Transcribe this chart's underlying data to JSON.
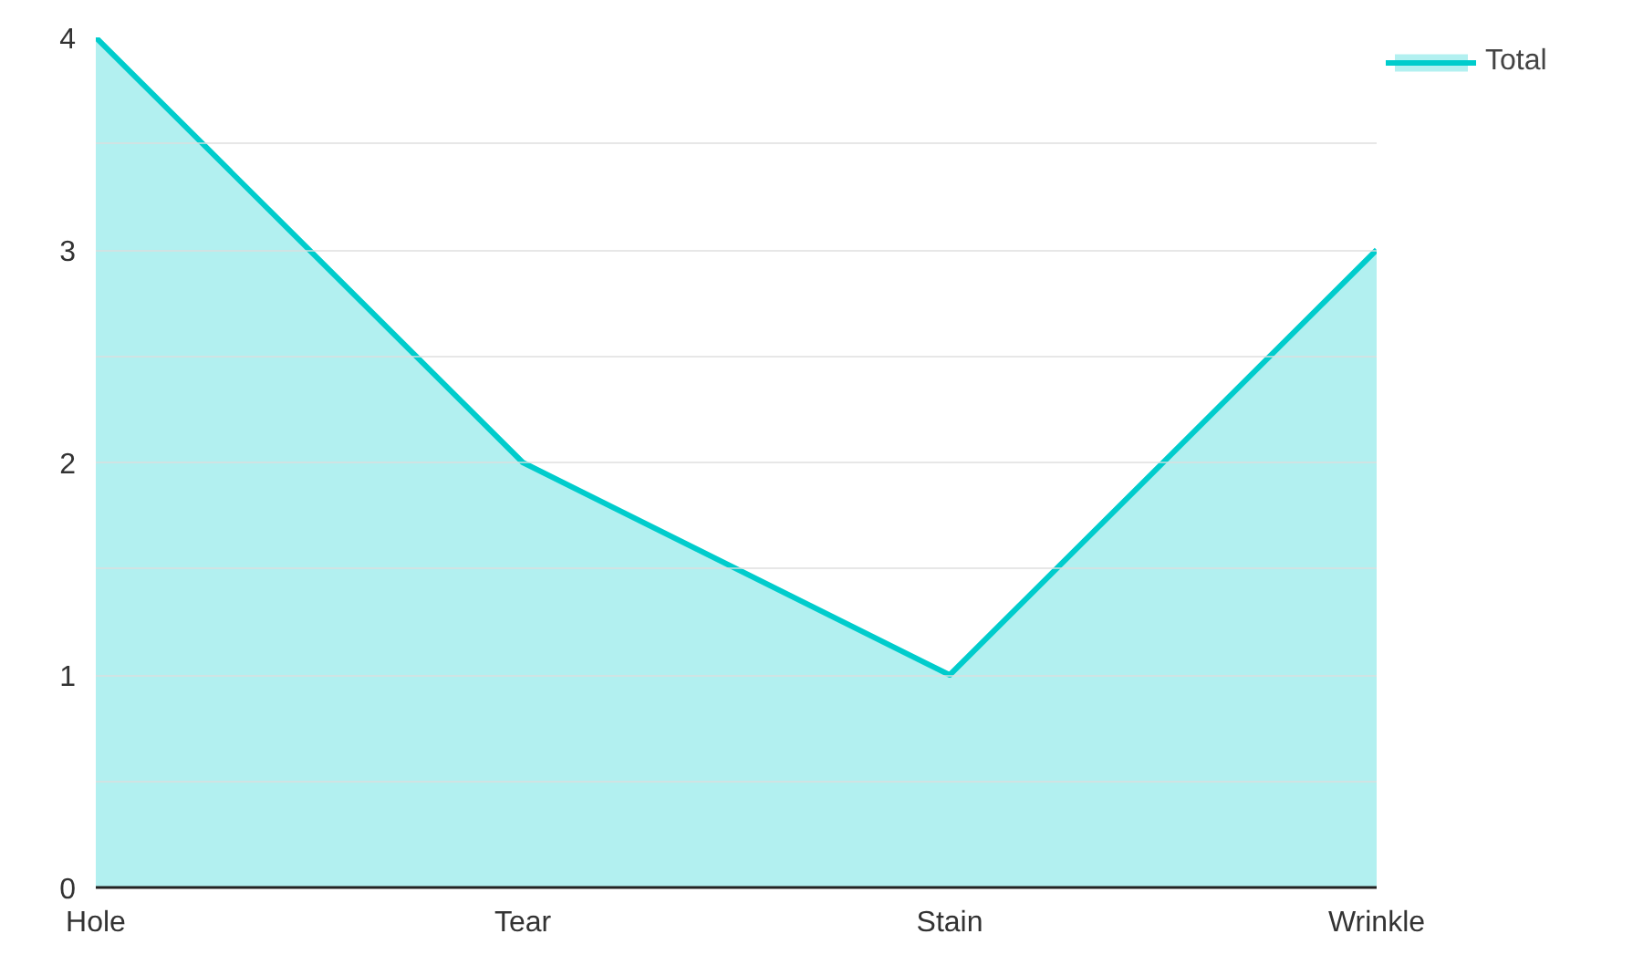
{
  "chart_data": {
    "type": "area",
    "categories": [
      "Hole",
      "Tear",
      "Stain",
      "Wrinkle"
    ],
    "series": [
      {
        "name": "Total",
        "color": "#00cccc",
        "values": [
          4,
          2,
          1,
          3
        ]
      }
    ],
    "ylim": [
      0,
      4
    ],
    "yticks": [
      0,
      {
        "value": 0.5,
        "label": null
      },
      1,
      {
        "value": 1.5,
        "label": null
      },
      2,
      {
        "value": 2.5,
        "label": null
      },
      3,
      {
        "value": 3.5,
        "label": null
      },
      4
    ],
    "grid": "y",
    "legend": "top right"
  }
}
